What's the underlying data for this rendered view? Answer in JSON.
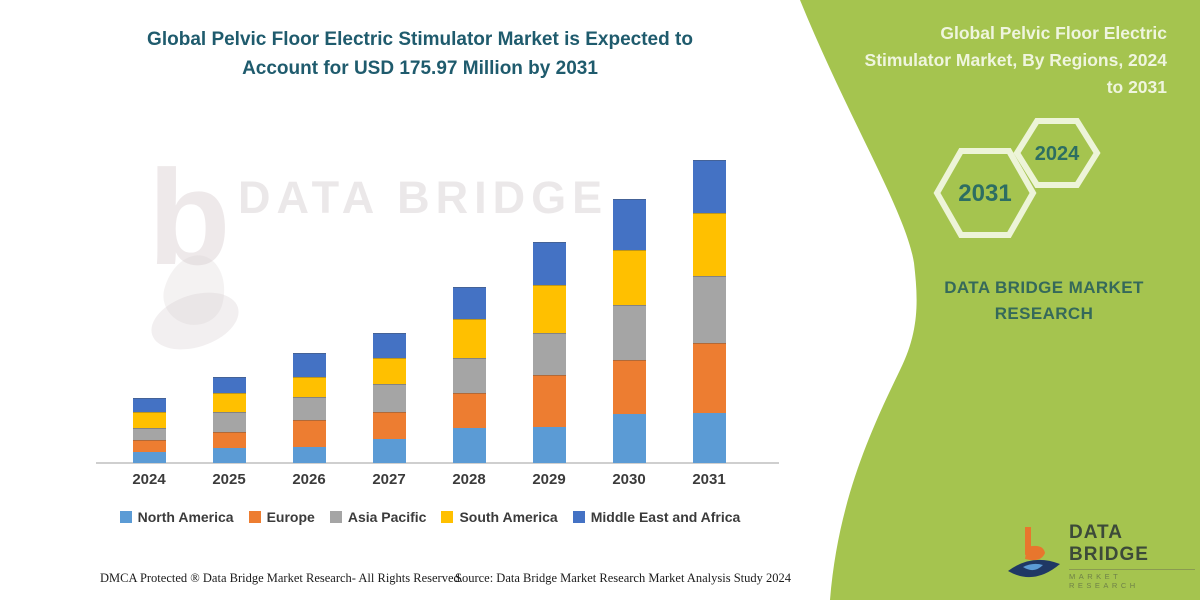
{
  "chart": {
    "title": "Global Pelvic Floor Electric Stimulator Market is Expected to Account for USD 175.97 Million by 2031",
    "title_color": "#1f5b6d",
    "axis_label_color": "#3b3b3b"
  },
  "chart_data": {
    "type": "bar",
    "stacked": true,
    "title": "Global Pelvic Floor Electric Stimulator Market is Expected to Account for USD 175.97 Million by 2031",
    "unit": "USD Million",
    "categories": [
      "2024",
      "2025",
      "2026",
      "2027",
      "2028",
      "2029",
      "2030",
      "2031"
    ],
    "series": [
      {
        "name": "North America",
        "color": "#5b9bd5",
        "values": [
          6.4,
          8.7,
          9.3,
          13.9,
          20.3,
          20.9,
          28.5,
          29.0
        ]
      },
      {
        "name": "Europe",
        "color": "#ed7d31",
        "values": [
          7.0,
          9.3,
          15.7,
          15.7,
          20.3,
          30.2,
          31.4,
          40.7
        ]
      },
      {
        "name": "Asia Pacific",
        "color": "#a5a5a5",
        "values": [
          7.0,
          11.6,
          13.4,
          16.3,
          20.3,
          24.4,
          31.9,
          38.9
        ]
      },
      {
        "name": "South America",
        "color": "#ffc000",
        "values": [
          9.3,
          11.0,
          11.6,
          15.1,
          22.7,
          27.9,
          31.9,
          36.6
        ]
      },
      {
        "name": "Middle East and Africa",
        "color": "#4472c4",
        "values": [
          8.1,
          9.3,
          13.9,
          14.5,
          18.6,
          25.1,
          29.6,
          30.77
        ]
      }
    ],
    "totals": [
      37.8,
      49.9,
      63.9,
      75.5,
      102.2,
      128.5,
      153.3,
      175.97
    ],
    "ylim": [
      0,
      182
    ],
    "grid": false,
    "legend_position": "bottom",
    "xlabel": "",
    "ylabel": ""
  },
  "watermark": {
    "text": "DATA BRIDGE",
    "glyph": "b"
  },
  "right_panel": {
    "bg_color": "#a5c44f",
    "title": "Global Pelvic Floor Electric Stimulator Market, By Regions, 2024 to 2031",
    "hexagons": [
      {
        "label": "2031"
      },
      {
        "label": "2024"
      }
    ],
    "brand_text": "DATA BRIDGE MARKET RESEARCH"
  },
  "logo": {
    "glyph": "b",
    "title": "DATA BRIDGE",
    "subtitle": "MARKET RESEARCH"
  },
  "footer": {
    "left": "DMCA Protected ® Data Bridge Market Research- All Rights Reserved.",
    "right": "Source: Data Bridge Market Research Market Analysis Study 2024"
  }
}
